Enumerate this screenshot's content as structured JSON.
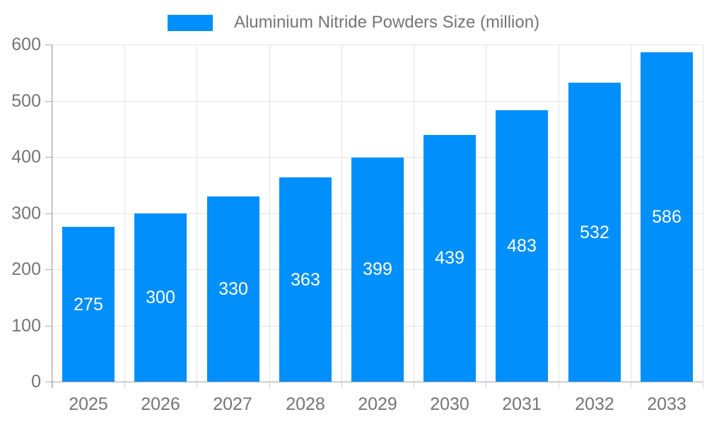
{
  "legend": {
    "label": "Aluminium Nitride Powders Size (million)",
    "position": "top"
  },
  "chart_data": {
    "type": "bar",
    "title": "Aluminium Nitride Powders Size (million)",
    "categories": [
      "2025",
      "2026",
      "2027",
      "2028",
      "2029",
      "2030",
      "2031",
      "2032",
      "2033"
    ],
    "series": [
      {
        "name": "Aluminium Nitride Powders Size (million)",
        "values": [
          275,
          300,
          330,
          363,
          399,
          439,
          483,
          532,
          586
        ]
      }
    ],
    "value_labels": [
      "275",
      "300",
      "330",
      "363",
      "399",
      "439",
      "483",
      "532",
      "586"
    ],
    "xlabel": "",
    "ylabel": "",
    "ylim": [
      0,
      600
    ],
    "y_ticks": [
      0,
      100,
      200,
      300,
      400,
      500,
      600
    ],
    "grid": {
      "horizontal": true,
      "vertical": true
    },
    "legend_position": "top",
    "colors": {
      "bar": "#008FFB",
      "grid_line": "#e3e3e3",
      "axis_line": "#a6a6a6",
      "y_tick_mark": "#b0b0b0",
      "x_tick_mark": "#d0d0d0",
      "tick_label": "#757575",
      "legend_text": "#757575",
      "value_label": "#ffffff",
      "background": "#ffffff"
    }
  }
}
